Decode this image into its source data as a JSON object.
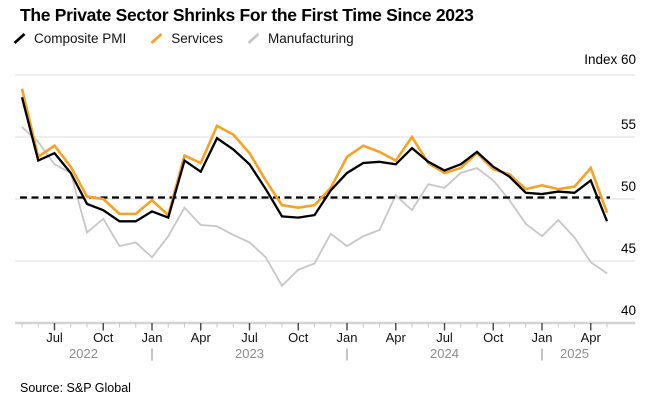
{
  "title": "The Private Sector Shrinks For the First Time Since 2023",
  "source": "Source: S&P Global",
  "legend": [
    {
      "label": "Composite PMI",
      "color": "#000000"
    },
    {
      "label": "Services",
      "color": "#F7A125"
    },
    {
      "label": "Manufacturing",
      "color": "#C7C7C7"
    }
  ],
  "colors": {
    "composite": "#000000",
    "services": "#F7A125",
    "manufacturing": "#C7C7C7",
    "gridline": "#DDDDDD",
    "axis_line": "#D4D4D4",
    "major_tick": "#444444",
    "minor_tick": "#C9C9C9",
    "year_label": "#8C8C8C",
    "month_label": "#111111",
    "reference_line": "#000000"
  },
  "chart_data": {
    "type": "line",
    "title": "The Private Sector Shrinks For the First Time Since 2023",
    "xlabel": "",
    "ylabel": "Index",
    "axis_top_label": "Index 60",
    "ylim": [
      40,
      60
    ],
    "y_ticks": [
      40,
      45,
      50,
      55,
      60
    ],
    "reference_line": 50,
    "grid": "horizontal",
    "legend_position": "top-left",
    "x_unit": "month",
    "x_start": "2022-04",
    "x_end": "2025-04",
    "x_tick_labels": [
      "Jul",
      "Oct",
      "Jan",
      "Apr",
      "Jul",
      "Oct",
      "Jan",
      "Apr",
      "Jul",
      "Oct",
      "Jan",
      "Apr"
    ],
    "year_labels": [
      "2022",
      "2023",
      "2024",
      "2025"
    ],
    "series": [
      {
        "name": "Composite PMI",
        "color": "#000000",
        "width": 2.3,
        "values": [
          58.2,
          53.1,
          53.7,
          52.1,
          49.6,
          49.1,
          48.2,
          48.2,
          49.0,
          48.5,
          53.1,
          52.2,
          54.9,
          54.0,
          52.8,
          50.8,
          48.6,
          48.5,
          48.7,
          50.7,
          52.1,
          52.9,
          53.0,
          52.8,
          54.1,
          53.0,
          52.3,
          52.8,
          53.8,
          52.6,
          51.8,
          50.5,
          50.4,
          50.6,
          50.5,
          51.5,
          48.2
        ]
      },
      {
        "name": "Services",
        "color": "#F7A125",
        "width": 2.6,
        "values": [
          58.9,
          53.4,
          54.3,
          52.6,
          50.2,
          50.0,
          48.8,
          48.8,
          49.9,
          48.7,
          53.5,
          52.9,
          55.9,
          55.2,
          53.7,
          51.5,
          49.5,
          49.3,
          49.5,
          50.9,
          53.4,
          54.3,
          53.8,
          53.1,
          55.0,
          52.9,
          52.1,
          52.5,
          53.7,
          52.4,
          52.0,
          50.8,
          51.1,
          50.8,
          51.0,
          52.5,
          48.9
        ]
      },
      {
        "name": "Manufacturing",
        "color": "#C7C7C7",
        "width": 1.8,
        "values": [
          55.8,
          54.6,
          52.8,
          52.1,
          47.3,
          48.4,
          46.2,
          46.5,
          45.3,
          47.0,
          49.3,
          47.9,
          47.8,
          47.1,
          46.5,
          45.3,
          43.0,
          44.3,
          44.8,
          47.2,
          46.2,
          47.0,
          47.5,
          50.3,
          49.1,
          51.2,
          50.9,
          52.1,
          52.5,
          51.5,
          49.9,
          48.0,
          47.0,
          48.3,
          46.9,
          44.9,
          44.0
        ]
      }
    ]
  }
}
